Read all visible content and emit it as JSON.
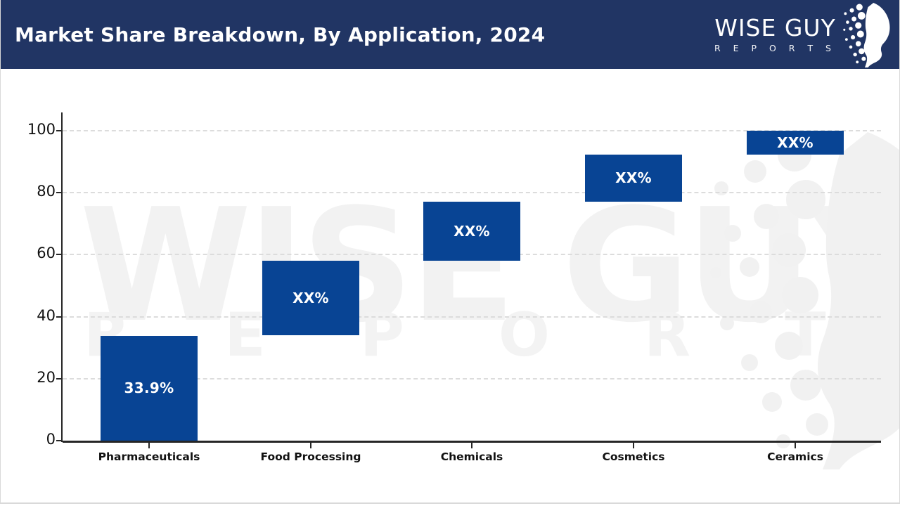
{
  "header": {
    "title": "Market Share Breakdown, By Application, 2024",
    "bg_color": "#213564",
    "logo": {
      "line1": "WISE GUY",
      "line2": "R E P O R T S",
      "face_icon": "wise-guy-face-icon"
    }
  },
  "watermark": {
    "line1": "WISE GUY",
    "line2": "R E P O R T S"
  },
  "chart_data": {
    "type": "waterfall",
    "title": "Market Share Breakdown, By Application, 2024",
    "categories": [
      "Pharmaceuticals",
      "Food Processing",
      "Chemicals",
      "Cosmetics",
      "Ceramics"
    ],
    "segments": [
      {
        "category": "Pharmaceuticals",
        "start": 0,
        "end": 33.9,
        "value": 33.9,
        "label": "33.9%"
      },
      {
        "category": "Food Processing",
        "start": 33.9,
        "end": 58.1,
        "value": 24.2,
        "label": "XX%"
      },
      {
        "category": "Chemicals",
        "start": 58.1,
        "end": 77.2,
        "value": 19.1,
        "label": "XX%"
      },
      {
        "category": "Cosmetics",
        "start": 77.2,
        "end": 92.4,
        "value": 15.2,
        "label": "XX%"
      },
      {
        "category": "Ceramics",
        "start": 92.4,
        "end": 100.0,
        "value": 7.6,
        "label": "XX%"
      }
    ],
    "yticks": [
      0,
      20,
      40,
      60,
      80,
      100
    ],
    "ylim": [
      0,
      106
    ],
    "xlabel": "",
    "ylabel": "",
    "grid": "horizontal-dashed",
    "legend": "none",
    "bar_color": "#084494",
    "bar_label_color": "#ffffff",
    "axis_color": "#262626",
    "gridline_color": "#dcdcdc"
  }
}
